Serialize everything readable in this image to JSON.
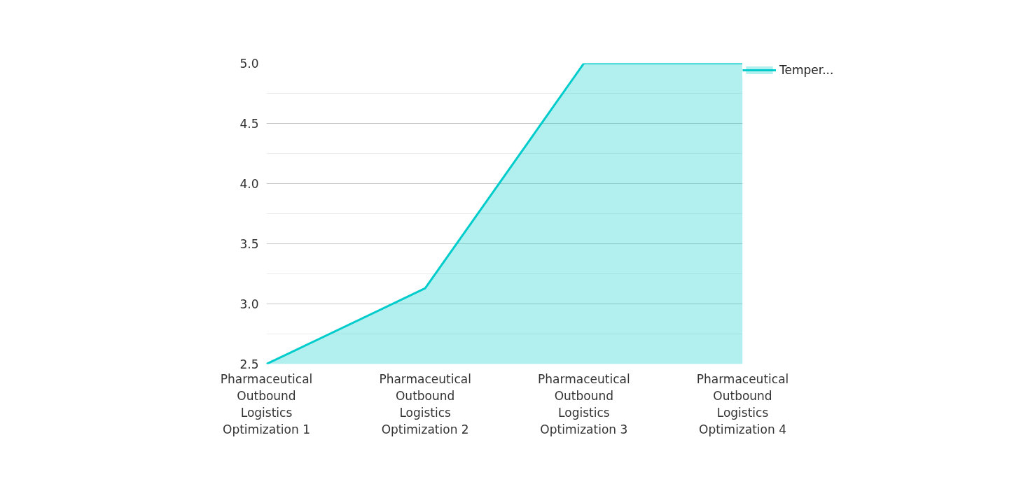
{
  "chart_data": {
    "type": "area",
    "categories": [
      "Pharmaceutical Outbound Logistics Optimization 1",
      "Pharmaceutical Outbound Logistics Optimization 2",
      "Pharmaceutical Outbound Logistics Optimization 3",
      "Pharmaceutical Outbound Logistics Optimization 4"
    ],
    "series": [
      {
        "name": "Temper...",
        "color": "#00cccc",
        "values": [
          2.5,
          3.13,
          5.0,
          5.0
        ]
      }
    ],
    "ylim": [
      2.5,
      5.0
    ],
    "yticks": [
      2.5,
      {
        "value": 3,
        "label": "3.0"
      },
      3.5,
      {
        "value": 4,
        "label": "4.0"
      },
      4.5,
      {
        "value": 5,
        "label": "5.0"
      }
    ],
    "grid": "y",
    "legend": "top right"
  }
}
